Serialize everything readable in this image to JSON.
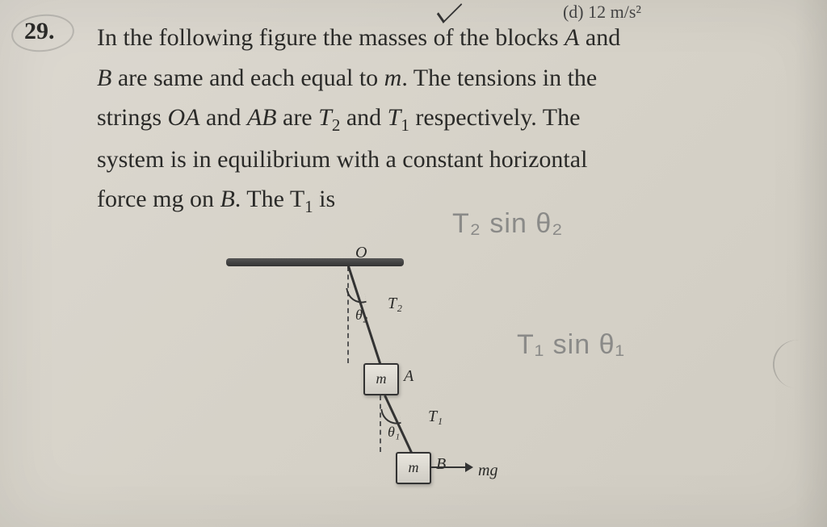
{
  "top_partial": "(d) 12 m/s²",
  "question_number": "29.",
  "question_html_parts": {
    "l1a": "In the following figure the masses of the blocks ",
    "A": "A",
    "l1b": " and",
    "B": "B",
    "l2a": " are same and each equal to ",
    "m": "m",
    "l2b": ". The tensions in the",
    "l3a": "strings ",
    "OA": "OA",
    "l3b": " and ",
    "AB": "AB",
    "l3c": " are ",
    "T2": "T",
    "T2sub": "2",
    "l3d": " and ",
    "T1": "T",
    "T1sub": "1",
    "l3e": " respectively. The",
    "l4": "system is in equilibrium with a constant horizontal",
    "l5a": "force mg on ",
    "l5B": "B",
    "l5b": ". The T",
    "l5sub": "1",
    "l5c": " is"
  },
  "handwriting": {
    "hw1": "T₂ sin θ₂",
    "hw2": "T₁ sin θ₁"
  },
  "diagram": {
    "pointO": "O",
    "blockA_mass": "m",
    "blockB_mass": "m",
    "labelA": "A",
    "labelB": "B",
    "T1": "T₁",
    "T2": "T₂",
    "theta1": "θ₁",
    "theta2": "θ₂",
    "force_label": "mg",
    "ceiling_color": "#333333",
    "block_fill": "#cfccc4",
    "block_border": "#333333"
  },
  "colors": {
    "page_bg": "#d8d4cc",
    "text": "#2a2a28",
    "handwriting": "#8a8a88"
  },
  "font": {
    "body_family": "Georgia, Times New Roman, serif",
    "body_size_pt": 22,
    "hand_family": "Comic Sans MS, cursive"
  }
}
